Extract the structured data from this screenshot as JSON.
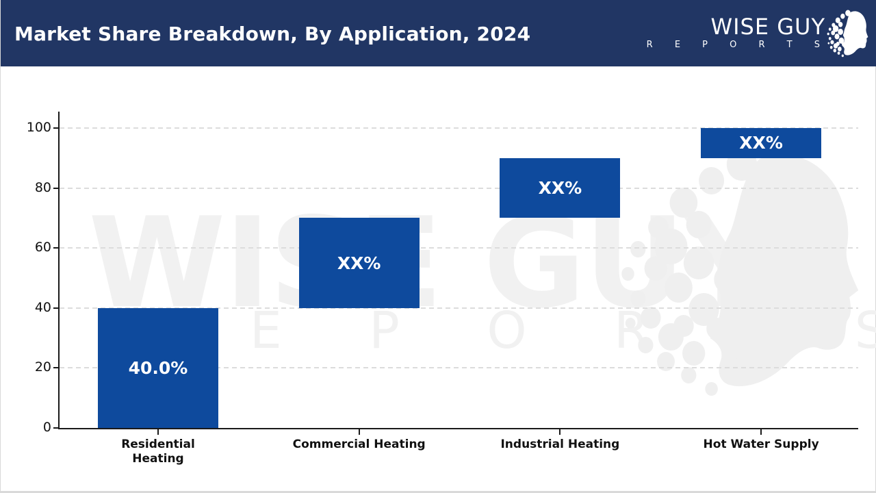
{
  "header": {
    "title": "Market Share Breakdown, By Application, 2024",
    "logo": {
      "name": "WISE GUY",
      "sub": "R E P O R T S"
    }
  },
  "watermark": {
    "line1": "WISE GUY",
    "line2": "R E P O R T S"
  },
  "chart_data": {
    "type": "bar",
    "subtype": "waterfall",
    "title": "Market Share Breakdown, By Application, 2024",
    "xlabel": "",
    "ylabel": "",
    "categories": [
      "Residential Heating",
      "Commercial Heating",
      "Industrial Heating",
      "Hot Water Supply"
    ],
    "category_lines": [
      [
        "Residential",
        "Heating"
      ],
      [
        "Commercial Heating"
      ],
      [
        "Industrial Heating"
      ],
      [
        "Hot Water Supply"
      ]
    ],
    "values": [
      40,
      30,
      20,
      10
    ],
    "segments": [
      {
        "start": 0,
        "end": 40,
        "label": "40.0%"
      },
      {
        "start": 40,
        "end": 70,
        "label": "XX%"
      },
      {
        "start": 70,
        "end": 90,
        "label": "XX%"
      },
      {
        "start": 90,
        "end": 100,
        "label": "XX%"
      }
    ],
    "yticks": [
      0,
      20,
      40,
      60,
      80,
      100
    ],
    "ylim": [
      0,
      105
    ],
    "grid": {
      "horizontal": true,
      "style": "dashed"
    },
    "legend": "none"
  },
  "colors": {
    "header_bg": "#213664",
    "bar": "#0e4a9d",
    "axis": "#1a1a1a",
    "grid": "#dcdcdc",
    "watermark": "#f1f1f1",
    "edge_border": "#d9d9d9"
  }
}
